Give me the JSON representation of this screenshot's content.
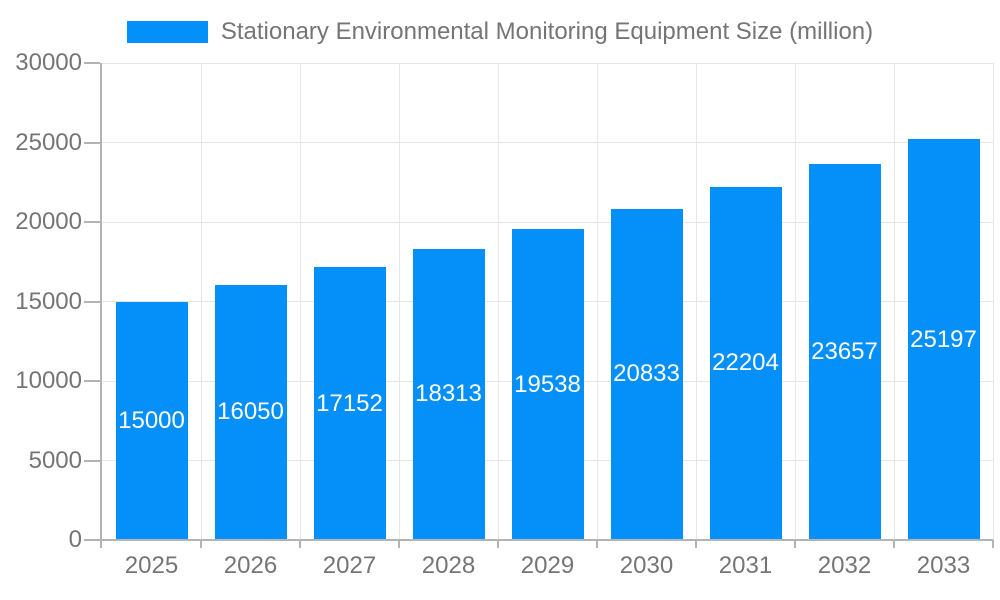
{
  "chart_data": {
    "type": "bar",
    "title": "Stationary Environmental Monitoring Equipment Size (million)",
    "categories": [
      "2025",
      "2026",
      "2027",
      "2028",
      "2029",
      "2030",
      "2031",
      "2032",
      "2033"
    ],
    "values": [
      15000,
      16050,
      17152,
      18313,
      19538,
      20833,
      22204,
      23657,
      25197
    ],
    "value_labels": [
      "15000",
      "16050",
      "17152",
      "18313",
      "19538",
      "20833",
      "22204",
      "23657",
      "25197"
    ],
    "yticks": [
      0,
      5000,
      10000,
      15000,
      20000,
      25000,
      30000
    ],
    "ylim": [
      0,
      30000
    ],
    "legend_position": "top",
    "grid": true,
    "colors": {
      "bar": "#0590f9",
      "value_text": "#ffffff",
      "axis_text": "#757575",
      "gridline": "#e6e6e6",
      "axis_line": "#b3b3b3",
      "background": "#ffffff"
    }
  }
}
